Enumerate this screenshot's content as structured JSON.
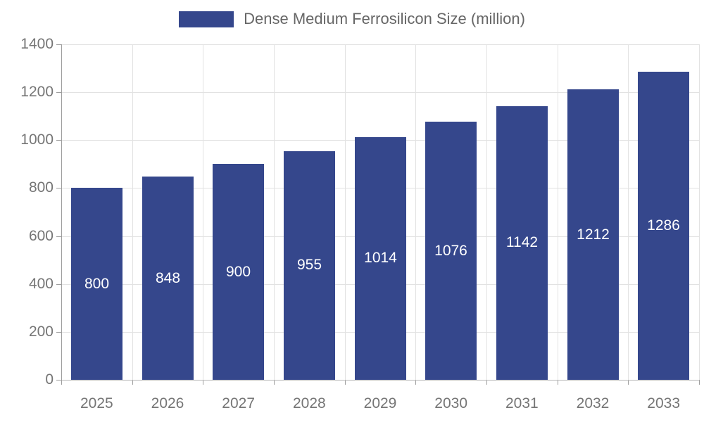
{
  "chart_data": {
    "type": "bar",
    "title": "",
    "legend_position": "top",
    "legend": [
      {
        "label": "Dense Medium Ferrosilicon Size (million)"
      }
    ],
    "categories": [
      "2025",
      "2026",
      "2027",
      "2028",
      "2029",
      "2030",
      "2031",
      "2032",
      "2033"
    ],
    "series": [
      {
        "name": "Dense Medium Ferrosilicon Size (million)",
        "values": [
          800,
          848,
          900,
          955,
          1014,
          1076,
          1142,
          1212,
          1286
        ]
      }
    ],
    "value_labels": [
      "800",
      "848",
      "900",
      "955",
      "1014",
      "1076",
      "1142",
      "1212",
      "1286"
    ],
    "xlabel": "",
    "ylabel": "",
    "ylim": [
      0,
      1400
    ],
    "yticks": [
      0,
      200,
      400,
      600,
      800,
      1000,
      1200,
      1400
    ],
    "ytick_labels": [
      "0",
      "200",
      "400",
      "600",
      "800",
      "1000",
      "1200",
      "1400"
    ],
    "grid": true
  },
  "style": {
    "bar_color": "#35478c",
    "bar_label_color": "#ffffff",
    "grid_color": "#e2e2e2",
    "axis_color": "#9e9e9e",
    "tick_label_color": "#757575",
    "legend_text_color": "#666666",
    "background": "#ffffff"
  }
}
